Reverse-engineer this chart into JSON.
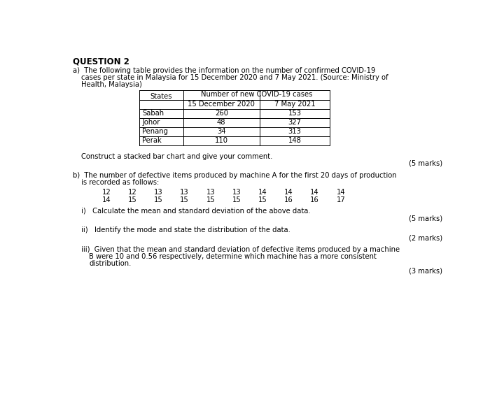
{
  "title": "QUESTION 2",
  "table_data": [
    [
      "Sabah",
      "260",
      "153"
    ],
    [
      "Johor",
      "48",
      "327"
    ],
    [
      "Penang",
      "34",
      "313"
    ],
    [
      "Perak",
      "110",
      "148"
    ]
  ],
  "nums_row1": [
    "12",
    "12",
    "13",
    "13",
    "13",
    "13",
    "14",
    "14",
    "14",
    "14"
  ],
  "nums_row2": [
    "14",
    "15",
    "15",
    "15",
    "15",
    "15",
    "15",
    "16",
    "16",
    "17"
  ],
  "bg_color": "#ffffff",
  "text_color": "#000000",
  "font_size_title": 8.5,
  "font_size_body": 7.2,
  "font_size_table": 7.2
}
